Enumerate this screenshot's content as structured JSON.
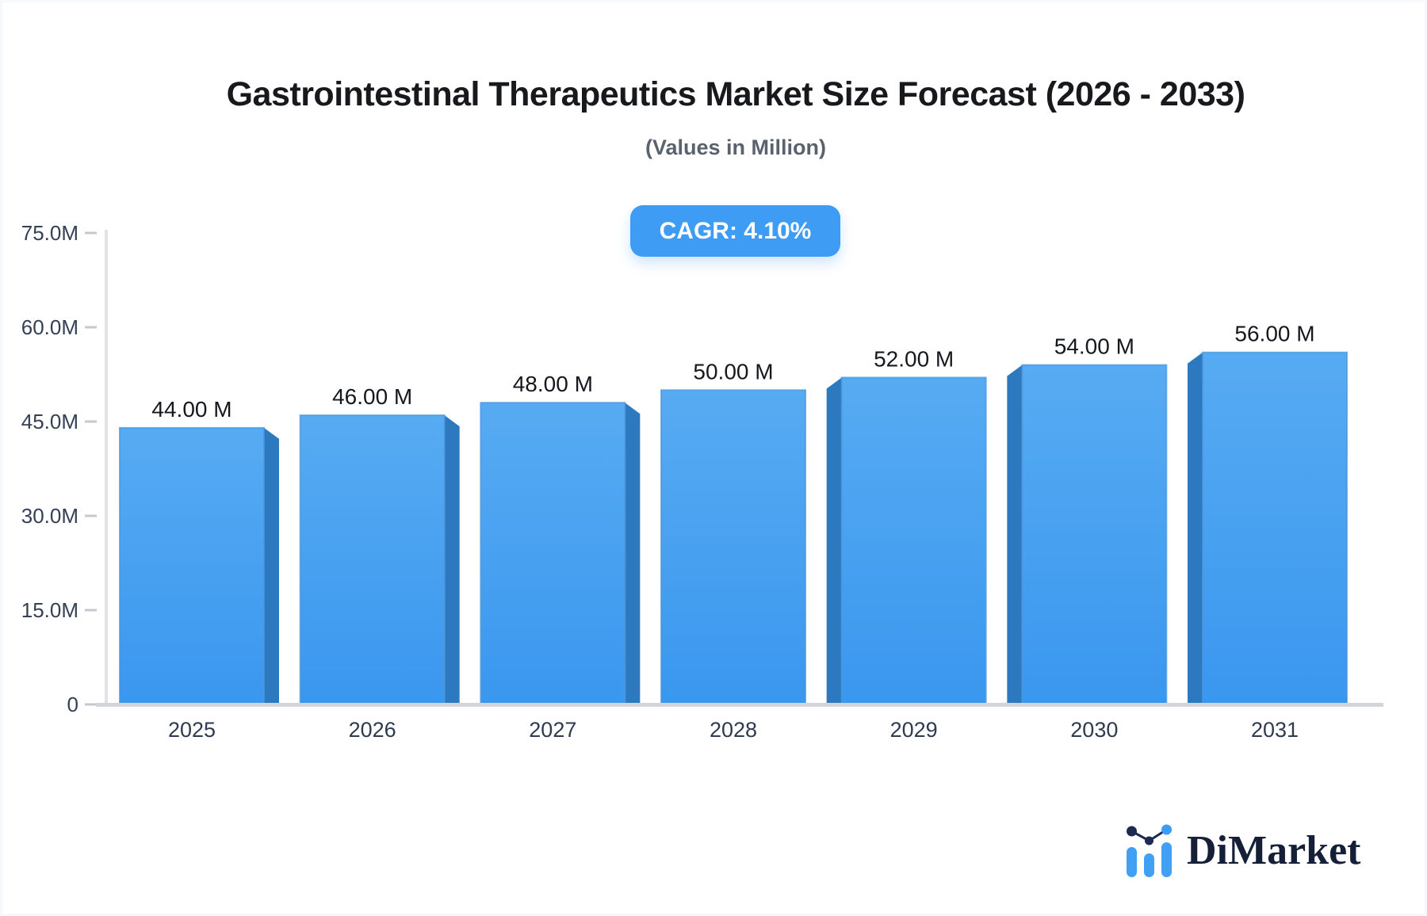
{
  "title": "Gastrointestinal Therapeutics Market Size Forecast (2026 - 2033)",
  "subtitle": "(Values in Million)",
  "badge": {
    "label": "CAGR: 4.10%",
    "bg_color": "#3e9cf4"
  },
  "logo": {
    "text": "DiMarket",
    "icon": "bar-chart-logo-icon",
    "icon_blue": "#42a0f4",
    "icon_navy": "#1d2b50"
  },
  "chart_data": {
    "type": "bar",
    "title": "Gastrointestinal Therapeutics Market Size Forecast (2026 - 2033)",
    "subtitle": "(Values in Million)",
    "categories": [
      "2025",
      "2026",
      "2027",
      "2028",
      "2029",
      "2030",
      "2031"
    ],
    "values": [
      44,
      46,
      48,
      50,
      52,
      54,
      56
    ],
    "bar_labels": [
      "44.00 M",
      "46.00 M",
      "48.00 M",
      "50.00 M",
      "52.00 M",
      "54.00 M",
      "56.00 M"
    ],
    "unit": "Million",
    "cagr": "4.10%",
    "xlabel": "",
    "ylabel": "",
    "ylim": [
      0,
      75
    ],
    "y_ticks": [
      {
        "label": "75.0M",
        "value": 75
      },
      {
        "label": "60.0M",
        "value": 60
      },
      {
        "label": "45.0M",
        "value": 45
      },
      {
        "label": "30.0M",
        "value": 30
      },
      {
        "label": "15.0M",
        "value": 15
      },
      {
        "label": "0",
        "value": 0
      }
    ],
    "grid": false,
    "legend": false,
    "style": "3d-bars-perspective-toward-center",
    "colors": {
      "bar_face_top": "#57abf2",
      "bar_face_bottom": "#3a97ef",
      "bar_face_stroke": "#4a97dd",
      "bar_side": "#2d79c0",
      "axis_line": "#dfe2e6",
      "baseline": "#d2d6db",
      "tick_dash": "#c4c9d0"
    }
  }
}
